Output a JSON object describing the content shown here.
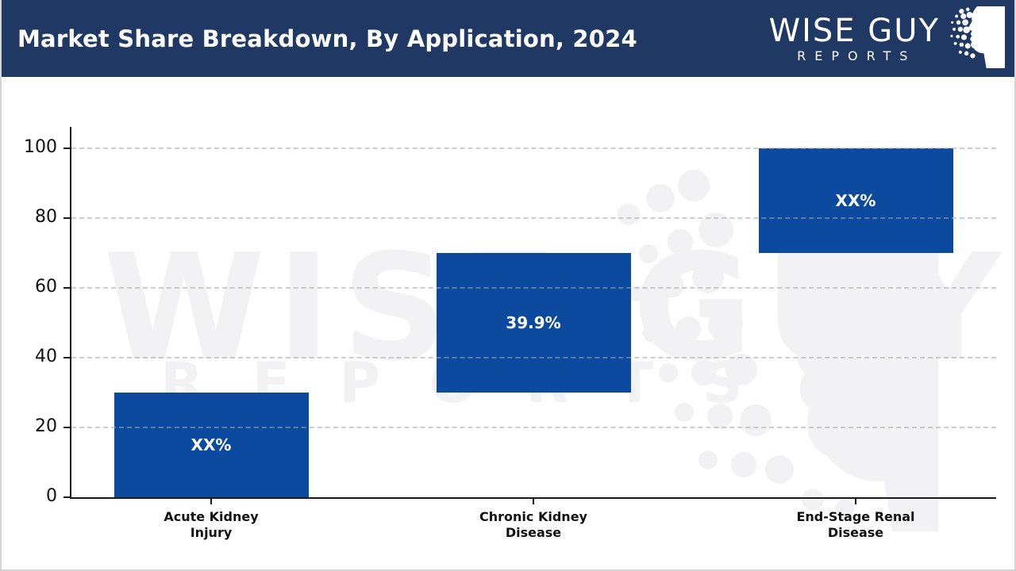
{
  "header": {
    "title": "Market Share Breakdown, By Application, 2024",
    "bg_color": "#1f3864",
    "logo": {
      "line1": "WISE GUY",
      "line2": "REPORTS"
    }
  },
  "watermark": {
    "line1": "WISE GUY",
    "line2": "REPORTS"
  },
  "chart_data": {
    "type": "bar",
    "subtype": "floating-waterfall",
    "title": "Market Share Breakdown, By Application, 2024",
    "categories": [
      "Acute Kidney\nInjury",
      "Chronic Kidney\nDisease",
      "End-Stage Renal\nDisease"
    ],
    "segments": [
      {
        "category": "Acute Kidney Injury",
        "start": 0,
        "end": 30,
        "label": "XX%"
      },
      {
        "category": "Chronic Kidney Disease",
        "start": 30,
        "end": 69.9,
        "label": "39.9%"
      },
      {
        "category": "End-Stage Renal Disease",
        "start": 69.9,
        "end": 100,
        "label": "XX%"
      }
    ],
    "yticks": [
      0,
      20,
      40,
      60,
      80,
      100
    ],
    "ylim": [
      0,
      106
    ],
    "bar_color": "#0b4a9e",
    "value_label_color": "#ffffff",
    "grid": {
      "show": true,
      "style": "dashed",
      "color": "#a5a5a5",
      "over_bars": true
    },
    "legend": "none"
  }
}
